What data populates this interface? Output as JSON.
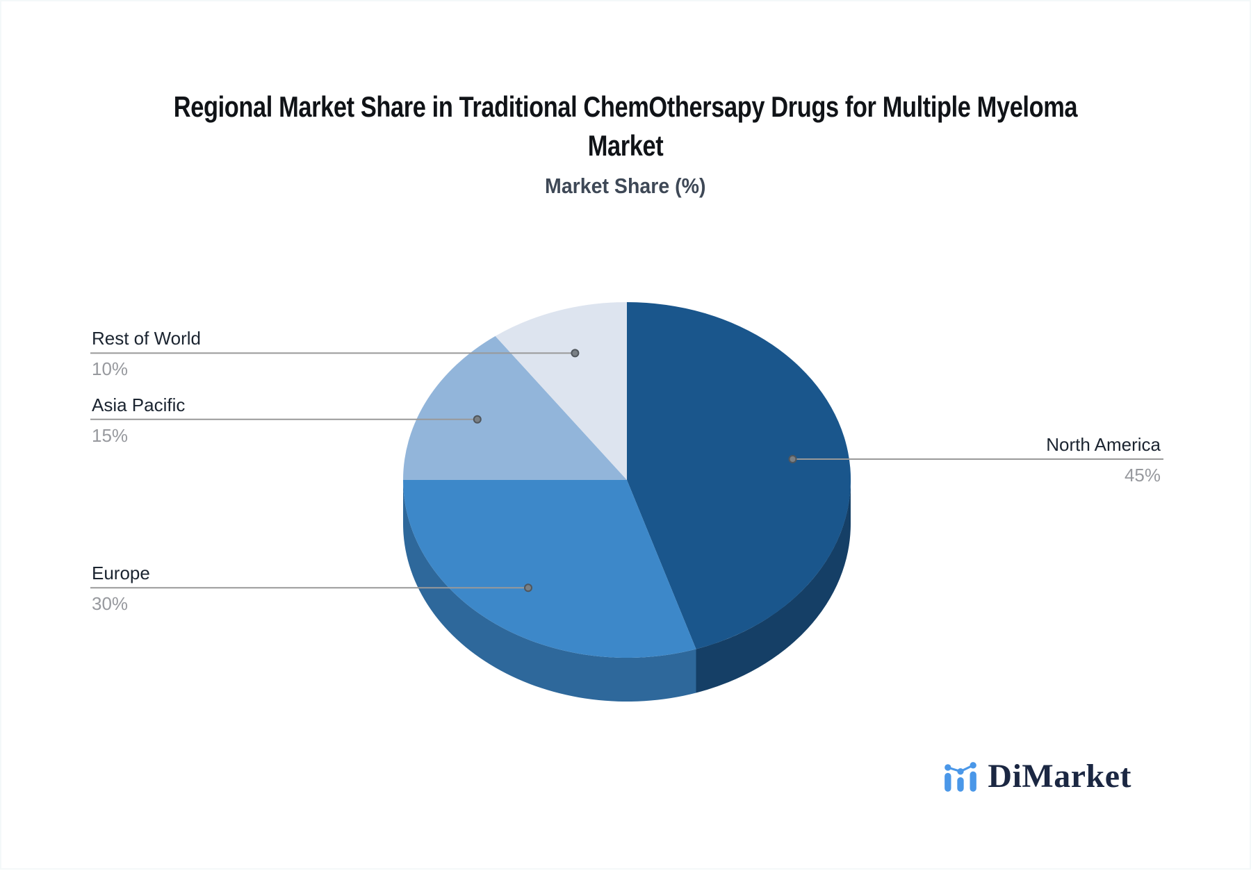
{
  "page": {
    "background": "#ffffff",
    "edge_border_color": "#f4f8f9"
  },
  "header": {
    "title": "Regional Market Share in Traditional ChemOthersapy Drugs for Multiple Myeloma Market",
    "title_lines": [
      "Regional Market Share in Traditional ChemOthersapy Drugs for Multiple Myeloma",
      "Market"
    ],
    "subtitle": "Market Share (%)"
  },
  "chart_data": {
    "type": "pie",
    "style": "3d",
    "title": "Regional Market Share in Traditional ChemOthersapy Drugs for Multiple Myeloma Market",
    "value_axis_label": "Market Share (%)",
    "unit": "%",
    "start_angle": "top",
    "direction": "clockwise",
    "categories": [
      "North America",
      "Europe",
      "Asia Pacific",
      "Rest of World"
    ],
    "values": [
      45,
      30,
      15,
      10
    ],
    "slices": [
      {
        "name": "North America",
        "value": 45,
        "display_value": "45%",
        "color": "#1a568c",
        "side_color": "#153f66",
        "label_side": "right"
      },
      {
        "name": "Europe",
        "value": 30,
        "display_value": "30%",
        "color": "#3d88c9",
        "side_color": "#2e689b",
        "label_side": "left"
      },
      {
        "name": "Asia Pacific",
        "value": 15,
        "display_value": "15%",
        "color": "#92b5da",
        "side_color": "#7d9cbc",
        "label_side": "left"
      },
      {
        "name": "Rest of World",
        "value": 10,
        "display_value": "10%",
        "color": "#dde4ef",
        "side_color": "#c0c9d6",
        "label_side": "left"
      }
    ],
    "leader_line_color": "#999999",
    "leader_dot_fill": "#7a8085",
    "leader_dot_stroke": "#50565c",
    "label_text_color": "#1b2430",
    "value_text_color": "#97999e",
    "legend": "none",
    "grid": false
  },
  "branding": {
    "logo_text": "DiMarket",
    "logo_text_color": "#1b2742",
    "logo_icon_color": "#4a97e8",
    "logo_icon": "bar-chart-trend-icon"
  }
}
